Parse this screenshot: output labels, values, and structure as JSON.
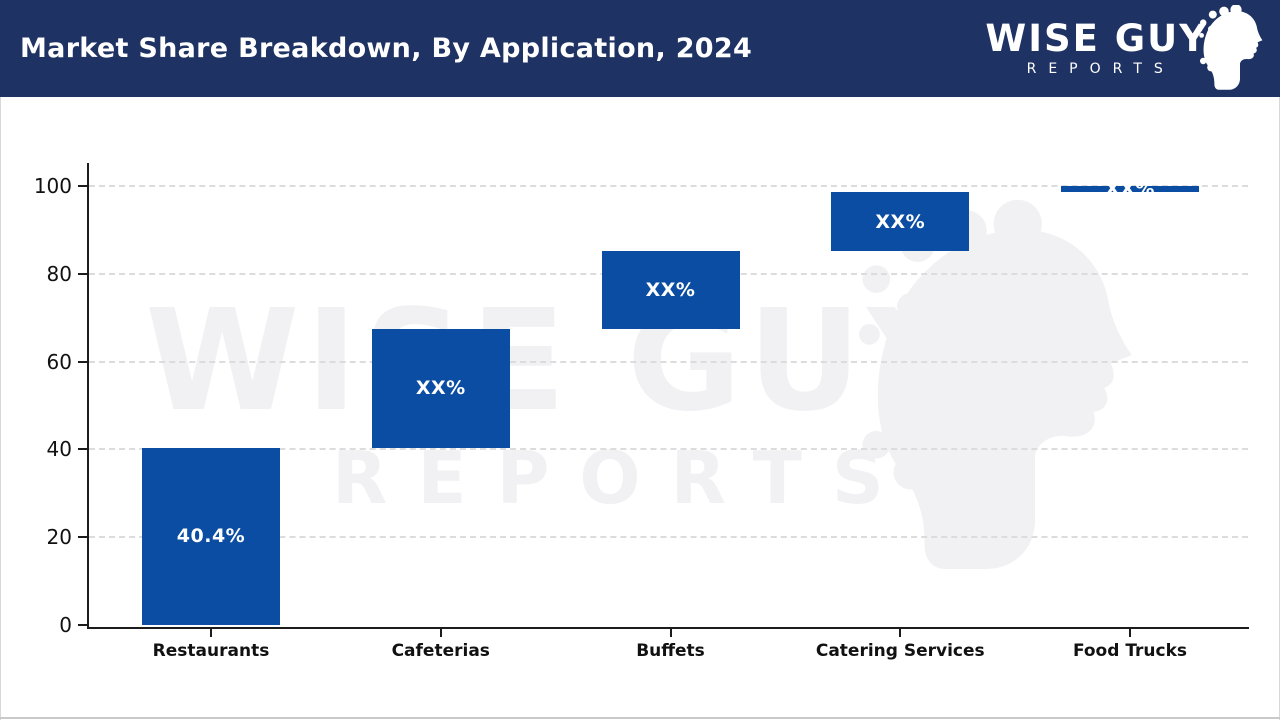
{
  "header": {
    "title": "Market Share Breakdown, By Application, 2024",
    "bg_color": "#1e3263",
    "logo": {
      "line1": "WISE GUY",
      "line2": "REPORTS"
    }
  },
  "watermark": {
    "line1": "WISE GUY",
    "line2": "REPORTS"
  },
  "chart_data": {
    "type": "bar",
    "subtype": "waterfall",
    "title": "Market Share Breakdown, By Application, 2024",
    "categories": [
      "Restaurants",
      "Cafeterias",
      "Buffets",
      "Catering Services",
      "Food Trucks"
    ],
    "segments": [
      {
        "category": "Restaurants",
        "start": 0,
        "end": 40.4,
        "label": "40.4%"
      },
      {
        "category": "Cafeterias",
        "start": 40.4,
        "end": 67.5,
        "label": "XX%"
      },
      {
        "category": "Buffets",
        "start": 67.5,
        "end": 85.2,
        "label": "XX%"
      },
      {
        "category": "Catering Services",
        "start": 85.2,
        "end": 98.6,
        "label": "XX%"
      },
      {
        "category": "Food Trucks",
        "start": 98.6,
        "end": 100,
        "label": "XX%"
      }
    ],
    "yticks": [
      0,
      20,
      40,
      60,
      80,
      100
    ],
    "ylim": [
      0,
      105
    ],
    "xlabel": "",
    "ylabel": "",
    "bar_color": "#0b4da2",
    "label_color": "#ffffff",
    "grid": "horizontal dashed, light gray",
    "legend": "none"
  }
}
